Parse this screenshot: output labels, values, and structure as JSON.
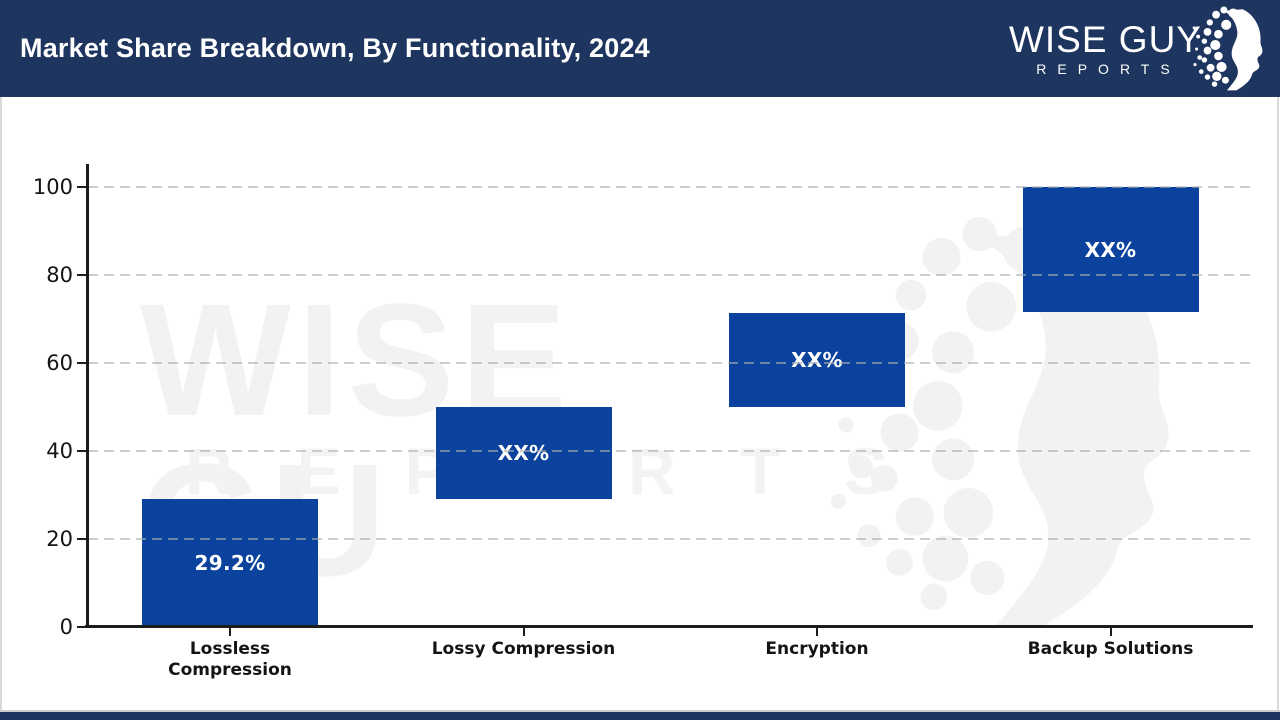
{
  "header": {
    "title": "Market Share Breakdown, By Functionality, 2024",
    "bg_color": "#1e355f",
    "logo": {
      "line1": "WISE GUY",
      "line2": "REPORTS"
    }
  },
  "watermark": {
    "line1": "WISE GU",
    "line2": "REPORTS"
  },
  "chart_data": {
    "type": "bar",
    "subtype": "waterfall-floating-bars",
    "title": "Market Share Breakdown, By Functionality, 2024",
    "categories": [
      "Lossless\nCompression",
      "Lossy Compression",
      "Encryption",
      "Backup Solutions"
    ],
    "segments": [
      {
        "category": "Lossless Compression",
        "start": 0,
        "end": 29.2,
        "label": "29.2%"
      },
      {
        "category": "Lossy Compression",
        "start": 29.2,
        "end": 49.9,
        "label": "XX%"
      },
      {
        "category": "Encryption",
        "start": 49.9,
        "end": 71.4,
        "label": "XX%"
      },
      {
        "category": "Backup Solutions",
        "start": 71.5,
        "end": 100,
        "label": "XX%"
      }
    ],
    "xlabel": "",
    "ylabel": "",
    "ylim": [
      0,
      105
    ],
    "yticks": [
      0,
      20,
      40,
      60,
      80,
      100
    ],
    "grid": "horizontal dashed, drawn above bars",
    "legend": "none",
    "bar_color": "#0a429d",
    "bar_label_color": "#ffffff",
    "axis_color": "#1c1c1c",
    "grid_color": "#c9c9c9",
    "watermark_color": "#f2f2f2"
  }
}
